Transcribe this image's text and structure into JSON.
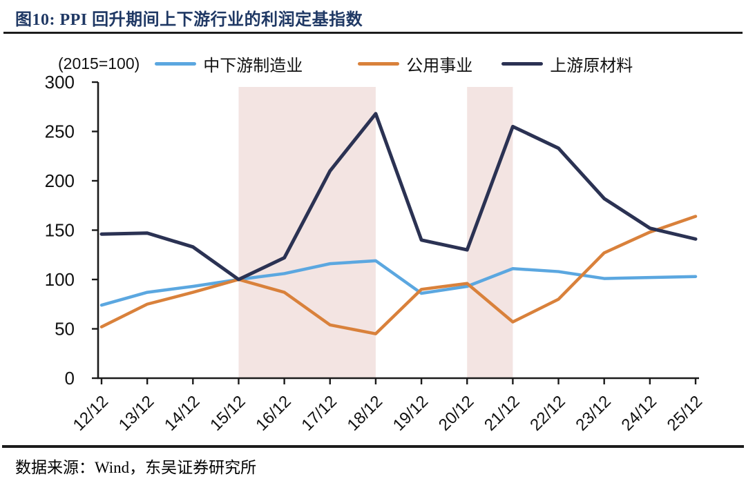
{
  "page": {
    "title": "图10:  PPI 回升期间上下游行业的利润定基指数",
    "source_note": "数据来源：Wind，东吴证券研究所"
  },
  "chart_data": {
    "type": "line",
    "title": "PPI 回升期间上下游行业的利润定基指数",
    "unit_label": "(2015=100)",
    "x": [
      "12/12",
      "13/12",
      "14/12",
      "15/12",
      "16/12",
      "17/12",
      "18/12",
      "19/12",
      "20/12",
      "21/12",
      "22/12",
      "23/12",
      "24/12",
      "25/12"
    ],
    "ylim": [
      0,
      300
    ],
    "yticks": [
      0,
      50,
      100,
      150,
      200,
      250,
      300
    ],
    "grid": false,
    "legend_position": "top",
    "series": [
      {
        "name": "中下游制造业",
        "color": "#5BA7E0",
        "values": [
          74,
          87,
          93,
          100,
          106,
          116,
          119,
          86,
          93,
          111,
          108,
          101,
          102,
          103
        ]
      },
      {
        "name": "公用事业",
        "color": "#D9813B",
        "values": [
          52,
          75,
          87,
          100,
          87,
          54,
          45,
          90,
          96,
          57,
          80,
          127,
          148,
          164
        ]
      },
      {
        "name": "上游原材料",
        "color": "#2B3253",
        "values": [
          146,
          147,
          133,
          100,
          122,
          210,
          268,
          140,
          130,
          255,
          233,
          182,
          152,
          141
        ]
      }
    ],
    "highlight_bands": [
      {
        "from": "15/12",
        "to": "18/12",
        "color": "#F3E4E2"
      },
      {
        "from": "20/12",
        "to": "21/12",
        "color": "#F3E4E2"
      }
    ],
    "axis_color": "#1a1a1a"
  }
}
